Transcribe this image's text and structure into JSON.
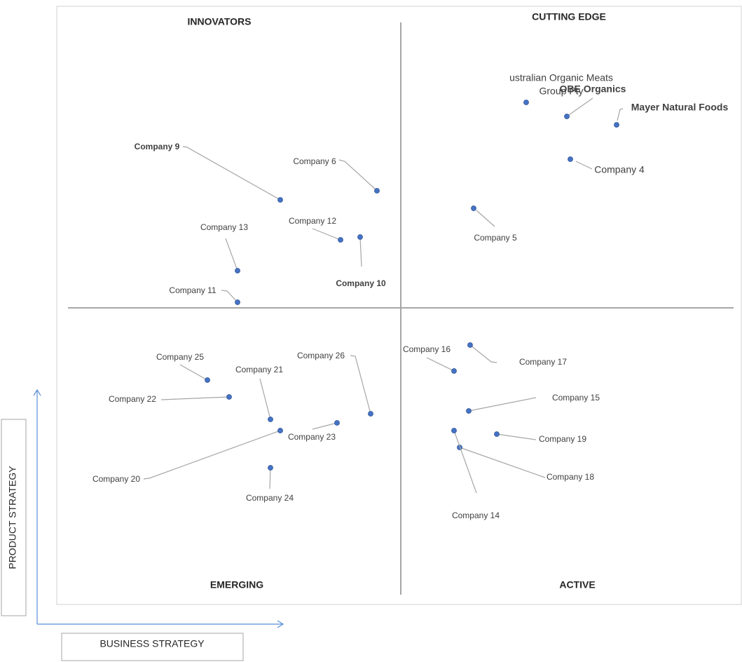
{
  "quadrants": {
    "top_left": "INNOVATORS",
    "top_right": "CUTTING EDGE",
    "bottom_left": "EMERGING",
    "bottom_right": "ACTIVE"
  },
  "axes": {
    "y_label": "PRODUCT STRATEGY",
    "x_label": "BUSINESS STRATEGY"
  },
  "companies": [
    {
      "lines": [
        "ustralian Organic Meats",
        "Group Pty"
      ]
    },
    {
      "lines": [
        "OBE Organics"
      ]
    },
    {
      "lines": [
        "Mayer Natural Foods"
      ]
    },
    {
      "lines": [
        "Company 4"
      ]
    },
    {
      "lines": [
        "Company 5"
      ]
    },
    {
      "lines": [
        "Company 9"
      ]
    },
    {
      "lines": [
        "Company 6"
      ]
    },
    {
      "lines": [
        "Company 12"
      ]
    },
    {
      "lines": [
        "Company 10"
      ]
    },
    {
      "lines": [
        "Company 13"
      ]
    },
    {
      "lines": [
        "Company 11"
      ]
    },
    {
      "lines": [
        "Company 25"
      ]
    },
    {
      "lines": [
        "Company 22"
      ]
    },
    {
      "lines": [
        "Company 21"
      ]
    },
    {
      "lines": [
        "Company 26"
      ]
    },
    {
      "lines": [
        "Company 23"
      ]
    },
    {
      "lines": [
        "Company 20"
      ]
    },
    {
      "lines": [
        "Company 24"
      ]
    },
    {
      "lines": [
        "Company 16"
      ]
    },
    {
      "lines": [
        "Company 17"
      ]
    },
    {
      "lines": [
        "Company 15"
      ]
    },
    {
      "lines": [
        "Company 19"
      ]
    },
    {
      "lines": [
        "Company 18"
      ]
    },
    {
      "lines": [
        "Company 14"
      ]
    }
  ]
}
